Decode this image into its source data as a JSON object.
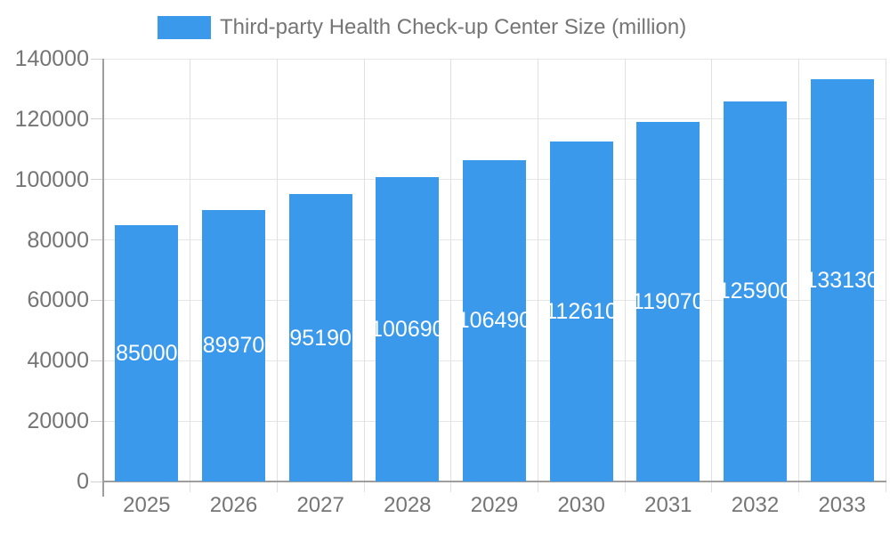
{
  "legend": {
    "label": "Third-party Health Check-up Center Size (million)",
    "swatch_color": "#3b99ec"
  },
  "chart_data": {
    "type": "bar",
    "title": "Third-party Health Check-up Center Size (million)",
    "categories": [
      "2025",
      "2026",
      "2027",
      "2028",
      "2029",
      "2030",
      "2031",
      "2032",
      "2033"
    ],
    "values": [
      85000,
      89970,
      95190,
      100690,
      106490,
      112610,
      119070,
      125900,
      133130
    ],
    "series_name": "Third-party Health Check-up Center Size (million)",
    "xlabel": "",
    "ylabel": "",
    "ylim": [
      0,
      140000
    ],
    "yticks": [
      0,
      20000,
      40000,
      60000,
      80000,
      100000,
      120000,
      140000
    ],
    "ytick_labels": [
      "0",
      "20000",
      "40000",
      "60000",
      "80000",
      "100000",
      "120000",
      "140000"
    ],
    "bar_labels_visible": true,
    "grid": true,
    "legend_position": "top"
  },
  "colors": {
    "background": "#ffffff",
    "bar": "#3b99ec",
    "bar_label_text": "#ffffff",
    "axis_line": "#9e9e9e",
    "gridline": "#e6e6e6",
    "tick_label_text": "#757575"
  }
}
